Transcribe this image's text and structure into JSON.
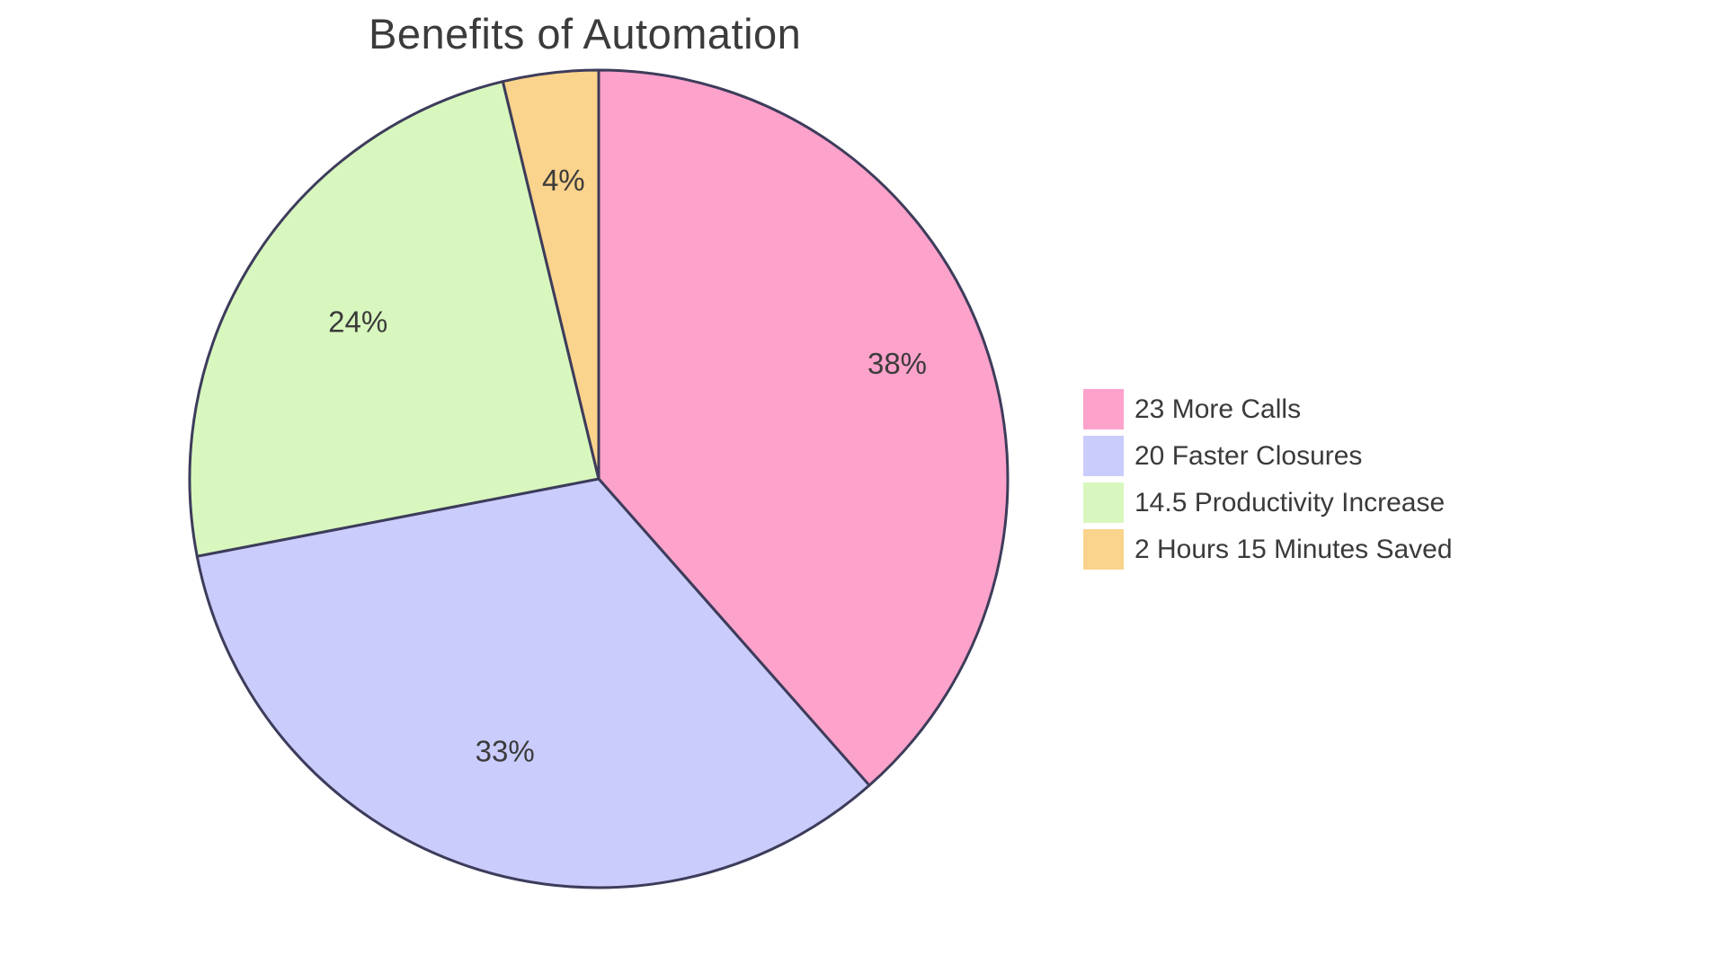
{
  "page": {
    "background": "#FFFFFF"
  },
  "chart_data": {
    "type": "pie",
    "title": "Benefits of Automation",
    "labels": [
      "23 More Calls",
      "20 Faster Closures",
      "14.5 Productivity Increase",
      "2 Hours 15 Minutes Saved"
    ],
    "values": [
      23,
      20,
      14.5,
      2.25
    ],
    "percent_labels": [
      "38%",
      "33%",
      "24%",
      "4%"
    ],
    "colors": [
      "#FDA2CA",
      "#CACCFC",
      "#D8F7BE",
      "#FAD38C"
    ],
    "slice_border_color": "#3D3C5B",
    "text_color": "#3B3B3B",
    "start_angle_deg": 0,
    "direction": "clockwise",
    "legend_position": "right",
    "grid": false
  }
}
